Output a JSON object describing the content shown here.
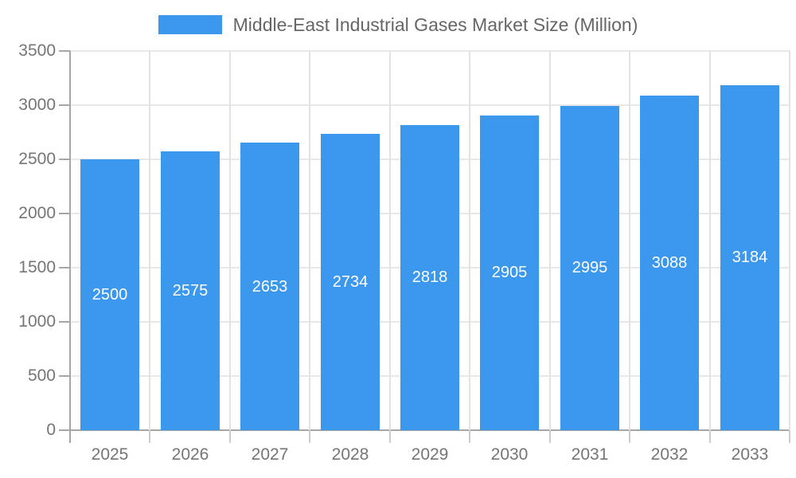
{
  "chart_data": {
    "type": "bar",
    "title": "Middle-East Industrial Gases Market Size (Million)",
    "categories": [
      "2025",
      "2026",
      "2027",
      "2028",
      "2029",
      "2030",
      "2031",
      "2032",
      "2033"
    ],
    "values": [
      2500,
      2575,
      2653,
      2734,
      2818,
      2905,
      2995,
      3088,
      3184
    ],
    "yticks": [
      0,
      500,
      1000,
      1500,
      2000,
      2500,
      3000,
      3500
    ],
    "ylim": [
      0,
      3500
    ],
    "xlabel": "",
    "ylabel": "",
    "grid": true,
    "legend_position": "top",
    "bar_color": "#3B98EC",
    "value_label_color": "#FFFFFF",
    "axis_label_color": "#757575",
    "title_color": "#666666",
    "h_gridline_color": "#E8E8E8",
    "v_gridline_color": "#E2E2E2",
    "axis_line_color": "#A6A6A6",
    "x_tick_color": "#CCCCCC"
  }
}
